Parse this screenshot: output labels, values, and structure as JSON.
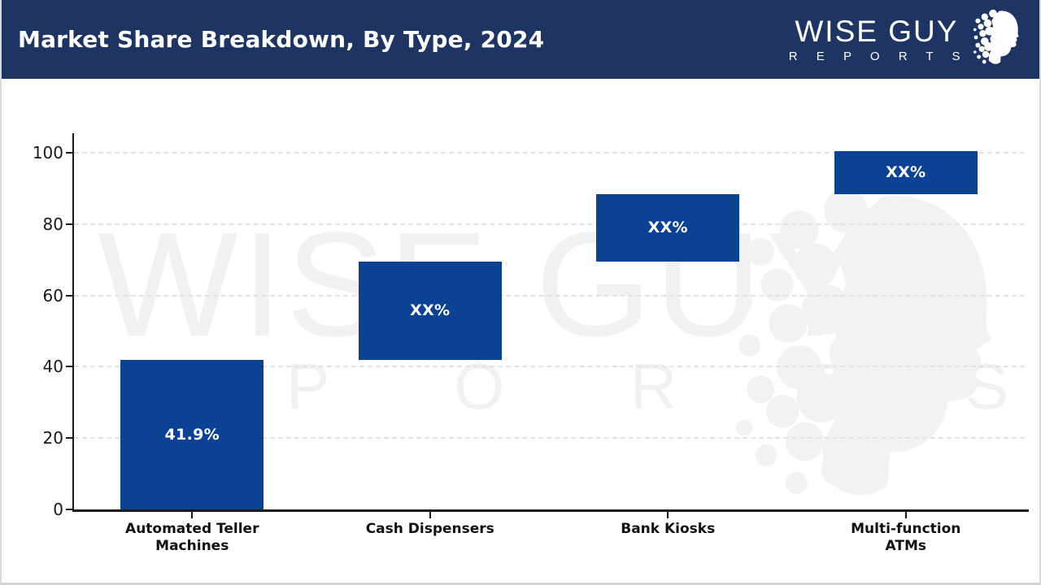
{
  "header": {
    "title": "Market Share Breakdown, By Type, 2024",
    "logo": {
      "line1": "WISE GUY",
      "line2": "R E P O R T S"
    }
  },
  "watermark": {
    "line1": "WISE GUY",
    "line2": "P O R T S"
  },
  "chart_data": {
    "type": "bar",
    "variant": "floating-waterfall",
    "title": "Market Share Breakdown, By Type, 2024",
    "xlabel": "",
    "ylabel": "",
    "ylim": [
      0,
      100
    ],
    "yticks": [
      "0",
      "20",
      "40",
      "60",
      "80",
      "100"
    ],
    "grid": {
      "horizontal": true,
      "style": "dashed",
      "color": "#E2E2E2"
    },
    "legend": "none",
    "categories": [
      "Automated Teller Machines",
      "Cash Dispensers",
      "Bank Kiosks",
      "Multi-function ATMs"
    ],
    "category_lines": [
      [
        "Automated Teller",
        "Machines"
      ],
      [
        "Cash Dispensers"
      ],
      [
        "Bank Kiosks"
      ],
      [
        "Multi-function",
        "ATMs"
      ]
    ],
    "segments": [
      {
        "category": "Automated Teller Machines",
        "start": 0,
        "end": 41.9,
        "label": "41.9%"
      },
      {
        "category": "Cash Dispensers",
        "start": 41.9,
        "end": 69.5,
        "label": "XX%"
      },
      {
        "category": "Bank Kiosks",
        "start": 69.5,
        "end": 88.4,
        "label": "XX%"
      },
      {
        "category": "Multi-function ATMs",
        "start": 88.4,
        "end": 100.5,
        "label": "XX%"
      }
    ],
    "colors": {
      "bar": "#0B4294",
      "bar_label": "#FFFFFF",
      "header_bg": "#1E3563",
      "header_text": "#FFFFFF",
      "axis": "#1A1A1A",
      "grid": "#E2E2E2",
      "watermark": "#F1F1F1"
    }
  }
}
